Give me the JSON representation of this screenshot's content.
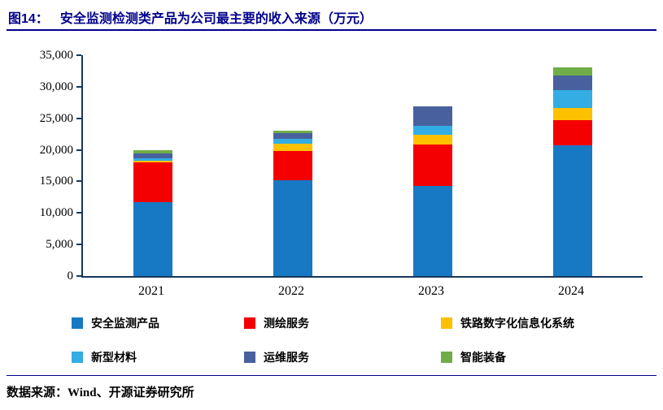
{
  "header": {
    "figure_label": "图14：",
    "title": "安全监测检测类产品为公司最主要的收入来源（万元）"
  },
  "footer": {
    "source": "数据来源：Wind、开源证券研究所"
  },
  "colors": {
    "title": "#00008B",
    "axis": "#16365C",
    "background": "#FFFFFF"
  },
  "chart_data": {
    "type": "bar",
    "stacked": true,
    "title": "安全监测检测类产品为公司最主要的收入来源（万元）",
    "xlabel": "",
    "ylabel": "",
    "categories": [
      "2021",
      "2022",
      "2023",
      "2024"
    ],
    "series": [
      {
        "name": "安全监测产品",
        "color": "#1779C4",
        "values": [
          11700,
          15200,
          14300,
          20700
        ]
      },
      {
        "name": "测绘服务",
        "color": "#F40000",
        "values": [
          6300,
          4600,
          6500,
          4000
        ]
      },
      {
        "name": "铁路数字化信息化系统",
        "color": "#FFC000",
        "values": [
          300,
          1200,
          1600,
          1900
        ]
      },
      {
        "name": "新型材料",
        "color": "#33ADE3",
        "values": [
          400,
          800,
          1400,
          2900
        ]
      },
      {
        "name": "运维服务",
        "color": "#48619E",
        "values": [
          800,
          800,
          3100,
          2300
        ]
      },
      {
        "name": "智能装备",
        "color": "#70AD47",
        "values": [
          400,
          400,
          0,
          1300
        ]
      }
    ],
    "ylim": [
      0,
      35000
    ],
    "yticks": [
      0,
      5000,
      10000,
      15000,
      20000,
      25000,
      30000,
      35000
    ],
    "ytick_labels": [
      "0",
      "5,000",
      "10,000",
      "15,000",
      "20,000",
      "25,000",
      "30,000",
      "35,000"
    ],
    "grid": false,
    "legend_position": "bottom"
  }
}
